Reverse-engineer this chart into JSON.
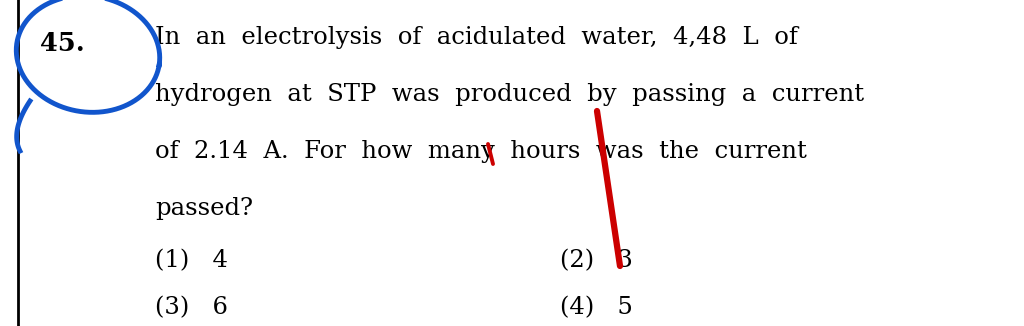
{
  "question_number": "45.",
  "line1": "In  an  electrolysis  of  acidulated  water,  4,48  L  of",
  "line2": "hydrogen  at  STP  was  produced  by  passing  a  current",
  "line3": "of  2.14  A.  For  how  many  hours  was  the  current",
  "line4": "passed?",
  "opt1_left": "(1)   4",
  "opt1_right": "(2)   3",
  "opt2_left": "(3)   6",
  "opt2_right": "(4)   5",
  "bg_color": "#ffffff",
  "text_color": "#000000",
  "blue_color": "#1155cc",
  "red_color": "#cc0000",
  "font_size": 17.5,
  "num_font_size": 18.5
}
